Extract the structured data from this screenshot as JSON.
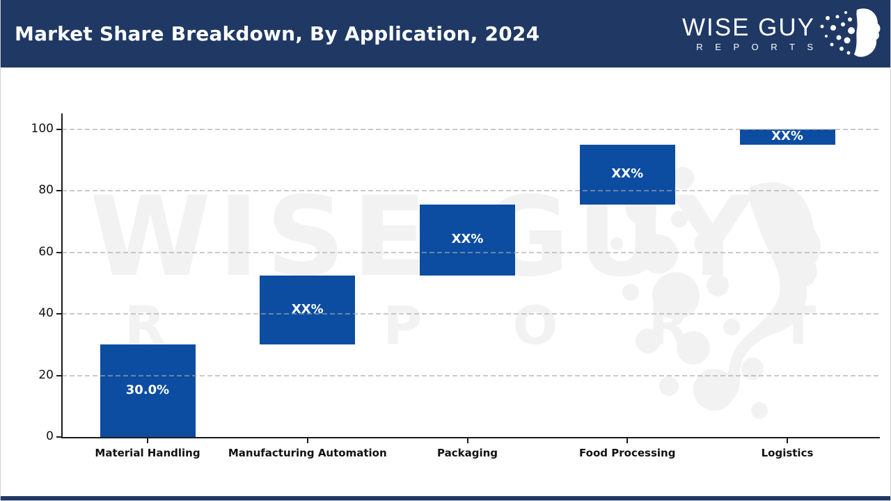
{
  "header": {
    "title": "Market Share Breakdown, By Application, 2024",
    "logo": {
      "line1": "WISE GUY",
      "line2": "R E P O R T S"
    }
  },
  "watermark": {
    "line1": "WISE GUY",
    "line2": "R E P O R T S"
  },
  "footer": {},
  "colors": {
    "header_bg": "#1f3864",
    "footer_bg": "#1f3864",
    "bar": "#0c4da2",
    "bar_label_text": "#ffffff",
    "axis": "#1a1a1a",
    "gridline": "#c8c8c8",
    "watermark": "#f2f2f3"
  },
  "chart_data": {
    "type": "bar",
    "subtype": "waterfall-floating-bars",
    "title": "Market Share Breakdown, By Application, 2024",
    "categories": [
      "Material Handling",
      "Manufacturing Automation",
      "Packaging",
      "Food Processing",
      "Logistics"
    ],
    "bars": [
      {
        "category": "Material Handling",
        "start": 0,
        "end": 30,
        "label": "30.0%"
      },
      {
        "category": "Manufacturing Automation",
        "start": 30,
        "end": 52.5,
        "label": "XX%"
      },
      {
        "category": "Packaging",
        "start": 52.5,
        "end": 75.5,
        "label": "XX%"
      },
      {
        "category": "Food Processing",
        "start": 75.5,
        "end": 95,
        "label": "XX%"
      },
      {
        "category": "Logistics",
        "start": 95,
        "end": 100,
        "label": "XX%"
      }
    ],
    "yticks": [
      0,
      20,
      40,
      60,
      80,
      100
    ],
    "ylim": [
      0,
      105
    ],
    "xlabel": "",
    "ylabel": "",
    "grid": "dashed-horizontal",
    "legend": "none"
  }
}
